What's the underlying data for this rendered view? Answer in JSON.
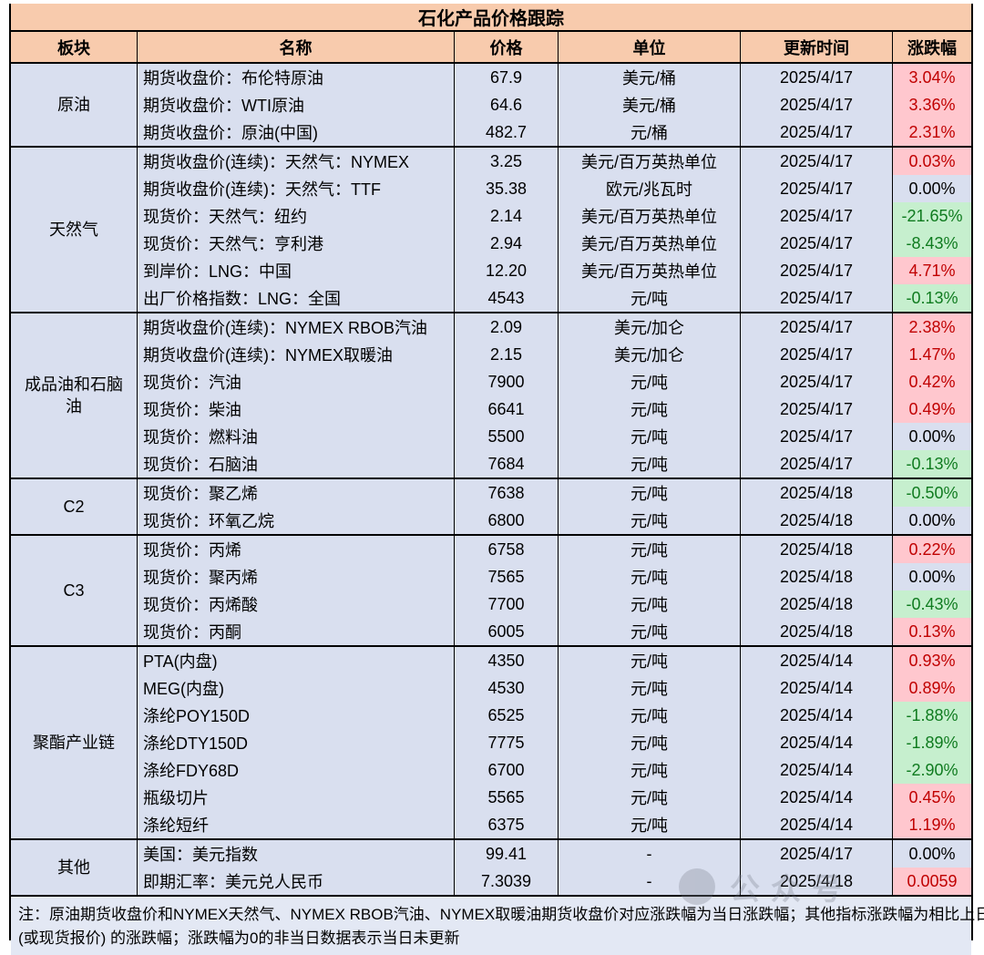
{
  "colors": {
    "header_orange": "#F8CBAD",
    "row_lavender": "#D9DFEF",
    "footnote_bg": "#E3E8F4",
    "up_bg": "#FFC7CE",
    "up_text": "#C00000",
    "down_bg": "#C6EFCE",
    "down_text": "#0F7B1F",
    "border": "#000000"
  },
  "watermark": {
    "label": "公众号"
  },
  "footnote": {
    "line1": "注：原油期货收盘价和NYMEX天然气、NYMEX RBOB汽油、NYMEX取暖油期货收盘价对应涨跌幅为当日涨跌幅；其他指标涨跌幅为相比上日收盘价",
    "line2": "(或现货报价) 的涨跌幅；涨跌幅为0的非当日数据表示当日未更新"
  },
  "chart_data": {
    "type": "table",
    "title": "石化产品价格跟踪",
    "columns": [
      "板块",
      "名称",
      "价格",
      "单位",
      "更新时间",
      "涨跌幅"
    ],
    "sections": [
      {
        "label": "原油",
        "rows": [
          {
            "name": "期货收盘价：布伦特原油",
            "price": "67.9",
            "unit": "美元/桶",
            "date": "2025/4/17",
            "change": "3.04%",
            "dir": "up"
          },
          {
            "name": "期货收盘价：WTI原油",
            "price": "64.6",
            "unit": "美元/桶",
            "date": "2025/4/17",
            "change": "3.36%",
            "dir": "up"
          },
          {
            "name": "期货收盘价：原油(中国)",
            "price": "482.7",
            "unit": "元/桶",
            "date": "2025/4/17",
            "change": "2.31%",
            "dir": "up"
          }
        ]
      },
      {
        "label": "天然气",
        "rows": [
          {
            "name": "期货收盘价(连续)：天然气：NYMEX",
            "price": "3.25",
            "unit": "美元/百万英热单位",
            "date": "2025/4/17",
            "change": "0.03%",
            "dir": "up"
          },
          {
            "name": "期货收盘价(连续)：天然气：TTF",
            "price": "35.38",
            "unit": "欧元/兆瓦时",
            "date": "2025/4/17",
            "change": "0.00%",
            "dir": "flat"
          },
          {
            "name": "现货价：天然气：纽约",
            "price": "2.14",
            "unit": "美元/百万英热单位",
            "date": "2025/4/17",
            "change": "-21.65%",
            "dir": "down"
          },
          {
            "name": "现货价：天然气：亨利港",
            "price": "2.94",
            "unit": "美元/百万英热单位",
            "date": "2025/4/17",
            "change": "-8.43%",
            "dir": "down"
          },
          {
            "name": "到岸价：LNG：中国",
            "price": "12.20",
            "unit": "美元/百万英热单位",
            "date": "2025/4/17",
            "change": "4.71%",
            "dir": "up"
          },
          {
            "name": "出厂价格指数：LNG：全国",
            "price": "4543",
            "unit": "元/吨",
            "date": "2025/4/17",
            "change": "-0.13%",
            "dir": "down"
          }
        ]
      },
      {
        "label": "成品油和石脑油",
        "rows": [
          {
            "name": "期货收盘价(连续)：NYMEX RBOB汽油",
            "price": "2.09",
            "unit": "美元/加仑",
            "date": "2025/4/17",
            "change": "2.38%",
            "dir": "up"
          },
          {
            "name": "期货收盘价(连续)：NYMEX取暖油",
            "price": "2.15",
            "unit": "美元/加仑",
            "date": "2025/4/17",
            "change": "1.47%",
            "dir": "up"
          },
          {
            "name": "现货价：汽油",
            "price": "7900",
            "unit": "元/吨",
            "date": "2025/4/17",
            "change": "0.42%",
            "dir": "up"
          },
          {
            "name": "现货价：柴油",
            "price": "6641",
            "unit": "元/吨",
            "date": "2025/4/17",
            "change": "0.49%",
            "dir": "up"
          },
          {
            "name": "现货价：燃料油",
            "price": "5500",
            "unit": "元/吨",
            "date": "2025/4/17",
            "change": "0.00%",
            "dir": "flat"
          },
          {
            "name": "现货价：石脑油",
            "price": "7684",
            "unit": "元/吨",
            "date": "2025/4/17",
            "change": "-0.13%",
            "dir": "down"
          }
        ]
      },
      {
        "label": "C2",
        "rows": [
          {
            "name": "现货价：聚乙烯",
            "price": "7638",
            "unit": "元/吨",
            "date": "2025/4/18",
            "change": "-0.50%",
            "dir": "down"
          },
          {
            "name": "现货价：环氧乙烷",
            "price": "6800",
            "unit": "元/吨",
            "date": "2025/4/18",
            "change": "0.00%",
            "dir": "flat"
          }
        ]
      },
      {
        "label": "C3",
        "rows": [
          {
            "name": "现货价：丙烯",
            "price": "6758",
            "unit": "元/吨",
            "date": "2025/4/18",
            "change": "0.22%",
            "dir": "up"
          },
          {
            "name": "现货价：聚丙烯",
            "price": "7565",
            "unit": "元/吨",
            "date": "2025/4/18",
            "change": "0.00%",
            "dir": "flat"
          },
          {
            "name": "现货价：丙烯酸",
            "price": "7700",
            "unit": "元/吨",
            "date": "2025/4/18",
            "change": "-0.43%",
            "dir": "down"
          },
          {
            "name": "现货价：丙酮",
            "price": "6005",
            "unit": "元/吨",
            "date": "2025/4/18",
            "change": "0.13%",
            "dir": "up"
          }
        ]
      },
      {
        "label": "聚酯产业链",
        "rows": [
          {
            "name": "PTA(内盘)",
            "price": "4350",
            "unit": "元/吨",
            "date": "2025/4/14",
            "change": "0.93%",
            "dir": "up"
          },
          {
            "name": "MEG(内盘)",
            "price": "4530",
            "unit": "元/吨",
            "date": "2025/4/14",
            "change": "0.89%",
            "dir": "up"
          },
          {
            "name": "涤纶POY150D",
            "price": "6525",
            "unit": "元/吨",
            "date": "2025/4/14",
            "change": "-1.88%",
            "dir": "down"
          },
          {
            "name": "涤纶DTY150D",
            "price": "7775",
            "unit": "元/吨",
            "date": "2025/4/14",
            "change": "-1.89%",
            "dir": "down"
          },
          {
            "name": "涤纶FDY68D",
            "price": "6700",
            "unit": "元/吨",
            "date": "2025/4/14",
            "change": "-2.90%",
            "dir": "down"
          },
          {
            "name": "瓶级切片",
            "price": "5565",
            "unit": "元/吨",
            "date": "2025/4/14",
            "change": "0.45%",
            "dir": "up"
          },
          {
            "name": "涤纶短纤",
            "price": "6375",
            "unit": "元/吨",
            "date": "2025/4/14",
            "change": "1.19%",
            "dir": "up"
          }
        ]
      },
      {
        "label": "其他",
        "rows": [
          {
            "name": "美国：美元指数",
            "price": "99.41",
            "unit": "-",
            "date": "2025/4/17",
            "change": "0.00%",
            "dir": "flat"
          },
          {
            "name": "即期汇率：美元兑人民币",
            "price": "7.3039",
            "unit": "-",
            "date": "2025/4/18",
            "change": "0.0059",
            "dir": "up"
          }
        ]
      }
    ]
  }
}
